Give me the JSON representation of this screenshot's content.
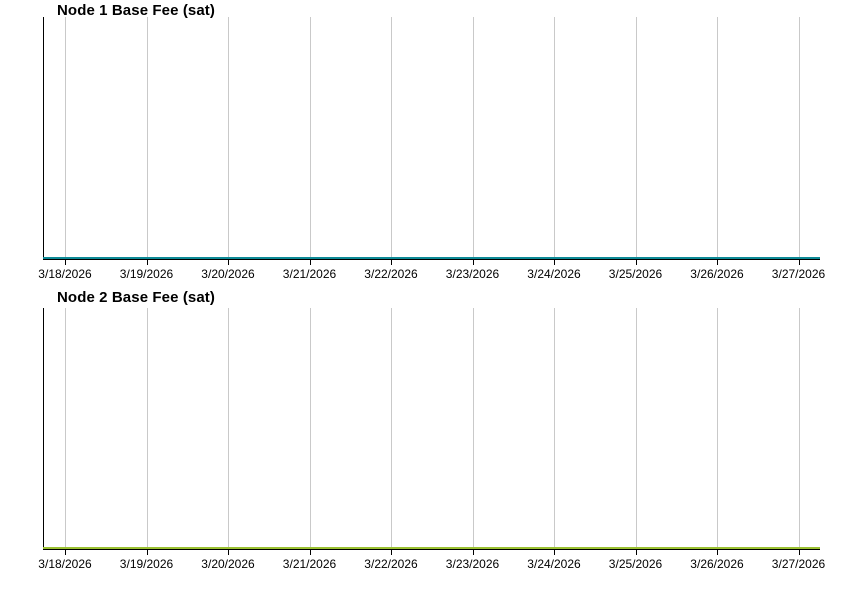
{
  "page": {
    "background_color": "#ffffff",
    "text_color": "#000000"
  },
  "chart_data": [
    {
      "type": "line",
      "title": "Node 1 Base Fee (sat)",
      "x": [
        "3/18/2026",
        "3/19/2026",
        "3/20/2026",
        "3/21/2026",
        "3/22/2026",
        "3/23/2026",
        "3/24/2026",
        "3/25/2026",
        "3/26/2026",
        "3/27/2026"
      ],
      "series": [
        {
          "name": "Node 1 Base Fee (sat)",
          "values": [
            0,
            0,
            0,
            0,
            0,
            0,
            0,
            0,
            0,
            0
          ]
        }
      ],
      "xlabel": "",
      "ylabel": "",
      "grid": "vertical-only",
      "legend": "none",
      "line_color": "#0d8a96",
      "axis_color": "#000000",
      "gridline_color": "#c9c9c9"
    },
    {
      "type": "line",
      "title": "Node 2 Base Fee (sat)",
      "x": [
        "3/18/2026",
        "3/19/2026",
        "3/20/2026",
        "3/21/2026",
        "3/22/2026",
        "3/23/2026",
        "3/24/2026",
        "3/25/2026",
        "3/26/2026",
        "3/27/2026"
      ],
      "series": [
        {
          "name": "Node 2 Base Fee (sat)",
          "values": [
            0,
            0,
            0,
            0,
            0,
            0,
            0,
            0,
            0,
            0
          ]
        }
      ],
      "xlabel": "",
      "ylabel": "",
      "grid": "vertical-only",
      "legend": "none",
      "line_color": "#9bc131",
      "axis_color": "#000000",
      "gridline_color": "#c9c9c9"
    }
  ]
}
